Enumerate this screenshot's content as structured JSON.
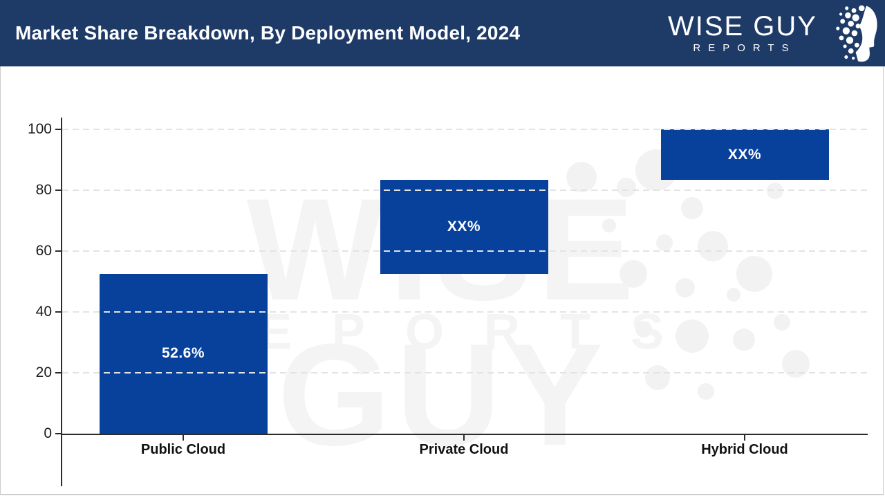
{
  "header": {
    "title": "Market Share Breakdown, By Deployment Model, 2024",
    "logo": {
      "line1": "WISE GUY",
      "line2": "REPORTS",
      "head_icon": "dotted-head-profile"
    }
  },
  "watermark": {
    "line1": "WISE GUY",
    "line2": "REPORTS"
  },
  "colors": {
    "header_bg": "#1e3a67",
    "bar_fill": "#07419c",
    "bar_label_text": "#ffffff",
    "axis": "#2b2b2b",
    "tick_text": "#1a1a1a",
    "gridline": "#e3e3e3",
    "page_border": "#cccccc",
    "watermark": "#f4f4f4",
    "title_text": "#ffffff"
  },
  "chart_data": {
    "type": "bar",
    "subtype": "floating-waterfall-segments",
    "title": "Market Share Breakdown, By Deployment Model, 2024",
    "categories": [
      "Public Cloud",
      "Private Cloud",
      "Hybrid Cloud"
    ],
    "segments": [
      {
        "category": "Public Cloud",
        "label": "52.6%",
        "start": 0,
        "end": 52.6
      },
      {
        "category": "Private Cloud",
        "label": "XX%",
        "start": 52.6,
        "end": 83.4
      },
      {
        "category": "Hybrid Cloud",
        "label": "XX%",
        "start": 83.4,
        "end": 100
      }
    ],
    "xlabel": "",
    "ylabel": "",
    "ylim": [
      0,
      105
    ],
    "yticks": [
      0,
      20,
      40,
      60,
      80,
      100
    ],
    "grid": "horizontal-dashed",
    "legend": "none",
    "note": "XX% labels are redacted values; segment extents estimated from gridlines"
  }
}
